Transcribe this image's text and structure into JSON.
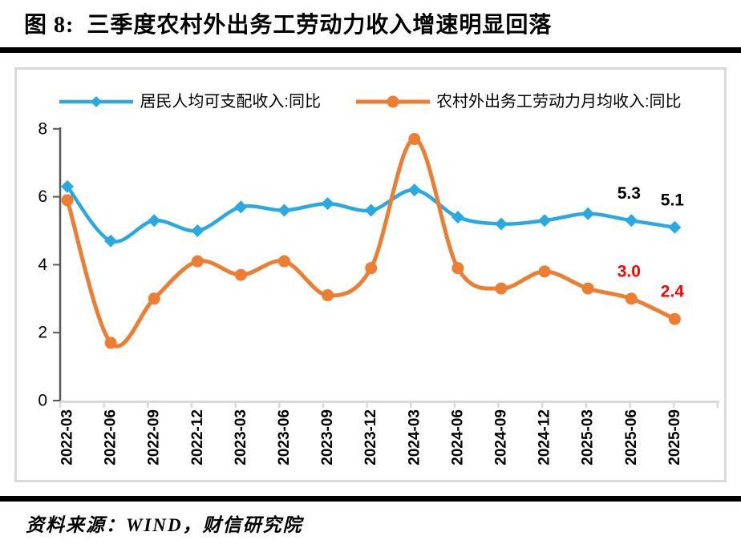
{
  "page": {
    "title": "图 8:  三季度农村外出务工劳动力收入增速明显回落",
    "source": "资料来源：WIND，财信研究院"
  },
  "chart_data": {
    "type": "line",
    "title": "图 8: 三季度农村外出务工劳动力收入增速明显回落",
    "categories": [
      "2022-03",
      "2022-06",
      "2022-09",
      "2022-12",
      "2023-03",
      "2023-06",
      "2023-09",
      "2023-12",
      "2024-03",
      "2024-06",
      "2024-09",
      "2024-12",
      "2025-03",
      "2025-06",
      "2025-09"
    ],
    "series": [
      {
        "name": "居民人均可支配收入:同比",
        "color": "#29A9E1",
        "marker": "diamond",
        "values": [
          6.3,
          4.7,
          5.3,
          5.0,
          5.7,
          5.6,
          5.8,
          5.6,
          6.2,
          5.4,
          5.2,
          5.3,
          5.5,
          5.3,
          5.1
        ]
      },
      {
        "name": "农村外出务工劳动力月均收入:同比",
        "color": "#ED7D31",
        "marker": "circle",
        "values": [
          5.9,
          1.7,
          3.0,
          4.1,
          3.7,
          4.1,
          3.1,
          3.9,
          7.7,
          3.9,
          3.3,
          3.8,
          3.3,
          3.0,
          2.4
        ]
      }
    ],
    "xlabel": "",
    "ylabel": "",
    "ylim": [
      0,
      8
    ],
    "yticks": [
      0,
      2,
      4,
      6,
      8
    ],
    "grid": false,
    "smooth": true,
    "legend_position": "top-center",
    "axis_colors": {
      "y_axis": "#595959",
      "x_axis": "#D9D9D9"
    },
    "annotations": [
      {
        "series": 0,
        "index": 13,
        "text": "5.3",
        "color": "#000000"
      },
      {
        "series": 0,
        "index": 14,
        "text": "5.1",
        "color": "#000000"
      },
      {
        "series": 1,
        "index": 13,
        "text": "3.0",
        "color": "#FF0000"
      },
      {
        "series": 1,
        "index": 14,
        "text": "2.4",
        "color": "#FF0000"
      }
    ]
  }
}
